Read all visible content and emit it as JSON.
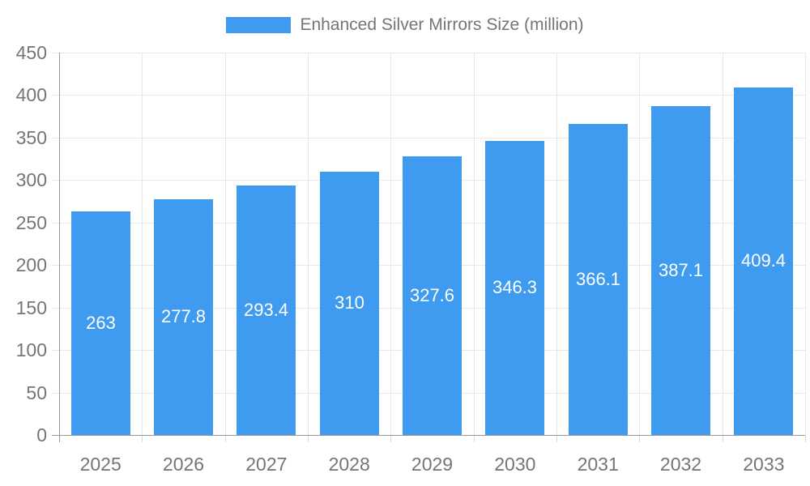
{
  "legend": {
    "label": "Enhanced Silver Mirrors Size (million)"
  },
  "chart_data": {
    "type": "bar",
    "title": "",
    "xlabel": "",
    "ylabel": "",
    "categories": [
      "2025",
      "2026",
      "2027",
      "2028",
      "2029",
      "2030",
      "2031",
      "2032",
      "2033"
    ],
    "series": [
      {
        "name": "Enhanced Silver Mirrors Size (million)",
        "values": [
          263,
          277.8,
          293.4,
          310,
          327.6,
          346.3,
          366.1,
          387.1,
          409.4
        ],
        "data_labels": [
          "263",
          "277.8",
          "293.4",
          "310",
          "327.6",
          "346.3",
          "366.1",
          "387.1",
          "409.4"
        ]
      }
    ],
    "ylim": [
      0,
      450
    ],
    "yticks": [
      0,
      50,
      100,
      150,
      200,
      250,
      300,
      350,
      400,
      450
    ],
    "grid": true,
    "legend_position": "top-center",
    "data_label_position": "inside-center"
  },
  "colors": {
    "bar": "#3E9BF0",
    "axis_line": "#999999",
    "grid_line": "#E7E7E7",
    "tick_text": "#757575",
    "legend_text": "#757575",
    "data_label_text": "#FFFFFF",
    "background": "#FFFFFF"
  }
}
